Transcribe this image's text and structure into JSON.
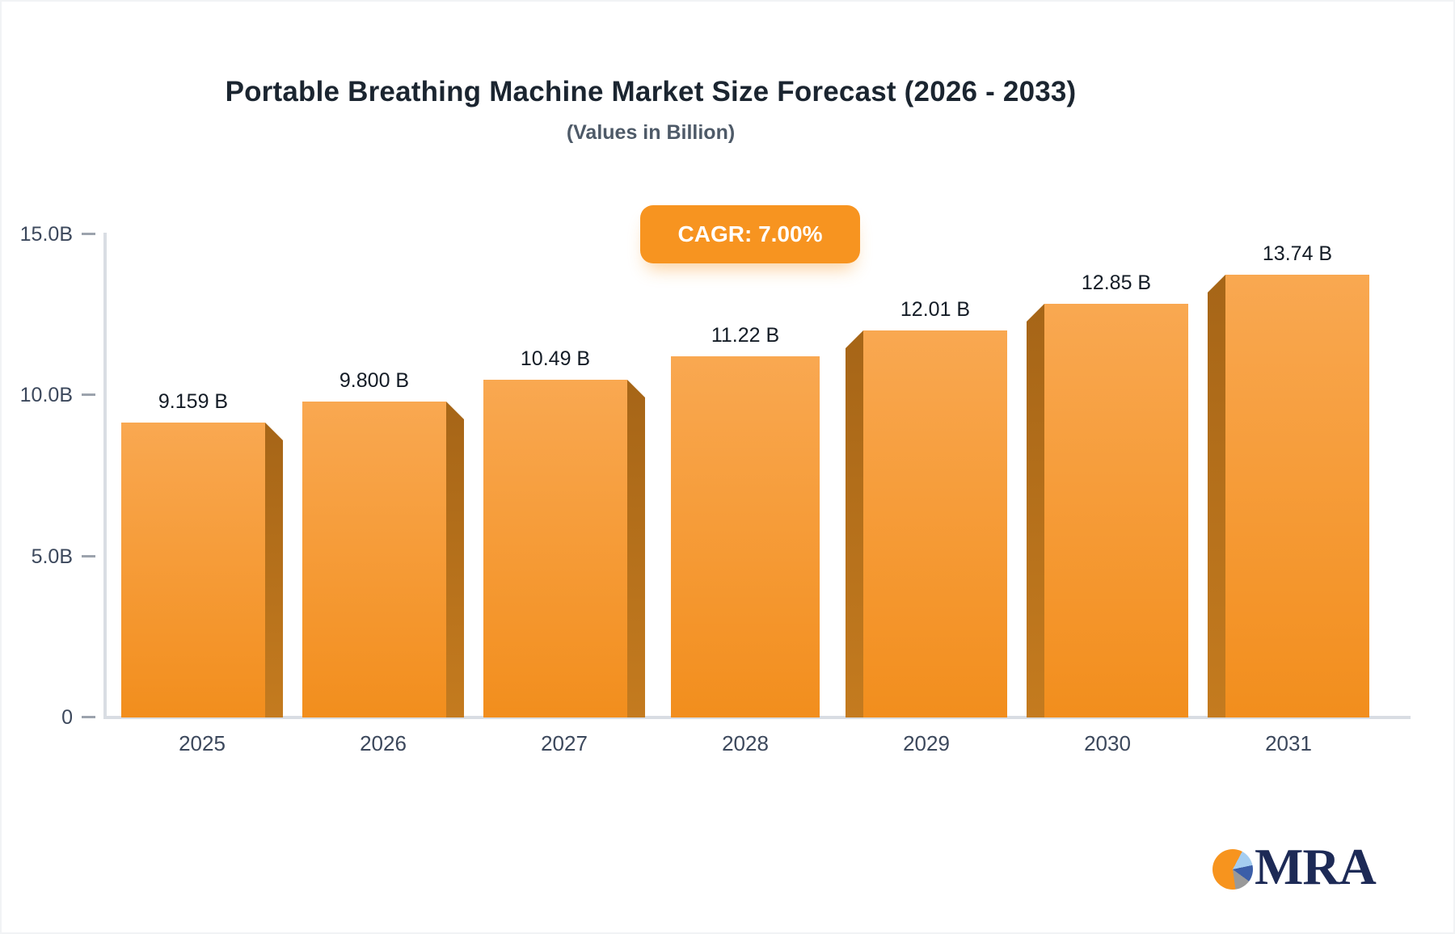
{
  "chart_data": {
    "type": "bar",
    "title": "Portable Breathing Machine Market Size Forecast (2026 - 2033)",
    "subtitle": "(Values in Billion)",
    "badge": "CAGR: 7.00%",
    "categories": [
      "2025",
      "2026",
      "2027",
      "2028",
      "2029",
      "2030",
      "2031"
    ],
    "values": [
      9.159,
      9.8,
      10.49,
      11.22,
      12.01,
      12.85,
      13.74
    ],
    "value_labels": [
      "9.159 B",
      "9.800 B",
      "10.49 B",
      "11.22 B",
      "12.01 B",
      "12.85 B",
      "13.74 B"
    ],
    "y_ticks": [
      {
        "label": "15.0B",
        "value": 15
      },
      {
        "label": "10.0B",
        "value": 10
      },
      {
        "label": "5.0B",
        "value": 5
      },
      {
        "label": "0",
        "value": 0
      }
    ],
    "ylim": [
      0,
      15
    ],
    "grid": "off",
    "legend": "none",
    "bar_3d_sides": [
      "right",
      "right",
      "right",
      "none",
      "left",
      "left",
      "left"
    ],
    "colors": {
      "bar_top": "#f9a851",
      "bar_bottom": "#f28e1d",
      "bar_side_top": "#a66517",
      "bar_side_bottom": "#c47b1f",
      "badge_bg": "#f79420",
      "axis": "#d9dde3",
      "tick_label": "#3c485c",
      "value_label": "#141c26"
    }
  },
  "logo": {
    "text": "MRA"
  }
}
